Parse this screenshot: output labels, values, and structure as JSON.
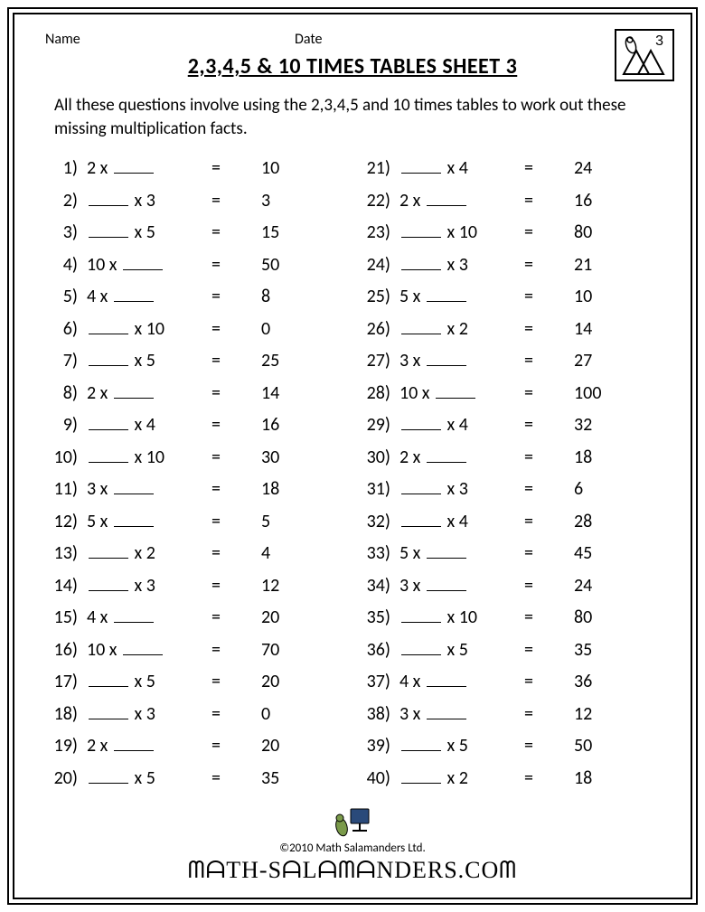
{
  "header": {
    "name_label": "Name",
    "date_label": "Date"
  },
  "badge_number": "3",
  "title": "2,3,4,5 & 10 TIMES TABLES SHEET 3",
  "instructions": "All these questions involve using the 2,3,4,5 and 10 times tables to work out these missing multiplication facts.",
  "problems_left": [
    {
      "n": "1)",
      "a": "2",
      "b": null,
      "r": "10"
    },
    {
      "n": "2)",
      "a": null,
      "b": "3",
      "r": "3"
    },
    {
      "n": "3)",
      "a": null,
      "b": "5",
      "r": "15"
    },
    {
      "n": "4)",
      "a": "10",
      "b": null,
      "r": "50"
    },
    {
      "n": "5)",
      "a": "4",
      "b": null,
      "r": "8"
    },
    {
      "n": "6)",
      "a": null,
      "b": "10",
      "r": "0"
    },
    {
      "n": "7)",
      "a": null,
      "b": "5",
      "r": "25"
    },
    {
      "n": "8)",
      "a": "2",
      "b": null,
      "r": "14"
    },
    {
      "n": "9)",
      "a": null,
      "b": "4",
      "r": "16"
    },
    {
      "n": "10)",
      "a": null,
      "b": "10",
      "r": "30"
    },
    {
      "n": "11)",
      "a": "3",
      "b": null,
      "r": "18"
    },
    {
      "n": "12)",
      "a": "5",
      "b": null,
      "r": "5"
    },
    {
      "n": "13)",
      "a": null,
      "b": "2",
      "r": "4"
    },
    {
      "n": "14)",
      "a": null,
      "b": "3",
      "r": "12"
    },
    {
      "n": "15)",
      "a": "4",
      "b": null,
      "r": "20"
    },
    {
      "n": "16)",
      "a": "10",
      "b": null,
      "r": "70"
    },
    {
      "n": "17)",
      "a": null,
      "b": "5",
      "r": "20"
    },
    {
      "n": "18)",
      "a": null,
      "b": "3",
      "r": "0"
    },
    {
      "n": "19)",
      "a": "2",
      "b": null,
      "r": "20"
    },
    {
      "n": "20)",
      "a": null,
      "b": "5",
      "r": "35"
    }
  ],
  "problems_right": [
    {
      "n": "21)",
      "a": null,
      "b": "4",
      "r": "24"
    },
    {
      "n": "22)",
      "a": "2",
      "b": null,
      "r": "16"
    },
    {
      "n": "23)",
      "a": null,
      "b": "10",
      "r": "80"
    },
    {
      "n": "24)",
      "a": null,
      "b": "3",
      "r": "21"
    },
    {
      "n": "25)",
      "a": "5",
      "b": null,
      "r": "10"
    },
    {
      "n": "26)",
      "a": null,
      "b": "2",
      "r": "14"
    },
    {
      "n": "27)",
      "a": "3",
      "b": null,
      "r": "27"
    },
    {
      "n": "28)",
      "a": "10",
      "b": null,
      "r": "100"
    },
    {
      "n": "29)",
      "a": null,
      "b": "4",
      "r": "32"
    },
    {
      "n": "30)",
      "a": "2",
      "b": null,
      "r": "18"
    },
    {
      "n": "31)",
      "a": null,
      "b": "3",
      "r": "6"
    },
    {
      "n": "32)",
      "a": null,
      "b": "4",
      "r": "28"
    },
    {
      "n": "33)",
      "a": "5",
      "b": null,
      "r": "45"
    },
    {
      "n": "34)",
      "a": "3",
      "b": null,
      "r": "24"
    },
    {
      "n": "35)",
      "a": null,
      "b": "10",
      "r": "80"
    },
    {
      "n": "36)",
      "a": null,
      "b": "5",
      "r": "35"
    },
    {
      "n": "37)",
      "a": "4",
      "b": null,
      "r": "36"
    },
    {
      "n": "38)",
      "a": "3",
      "b": null,
      "r": "12"
    },
    {
      "n": "39)",
      "a": null,
      "b": "5",
      "r": "50"
    },
    {
      "n": "40)",
      "a": null,
      "b": "2",
      "r": "18"
    }
  ],
  "equals_symbol": "=",
  "times_symbol": "x",
  "footer": {
    "copyright": "©2010 Math Salamanders Ltd.",
    "brand": "ᗰᗩTH-SᗩLᗩᗰᗩNDERS.COᗰ"
  }
}
